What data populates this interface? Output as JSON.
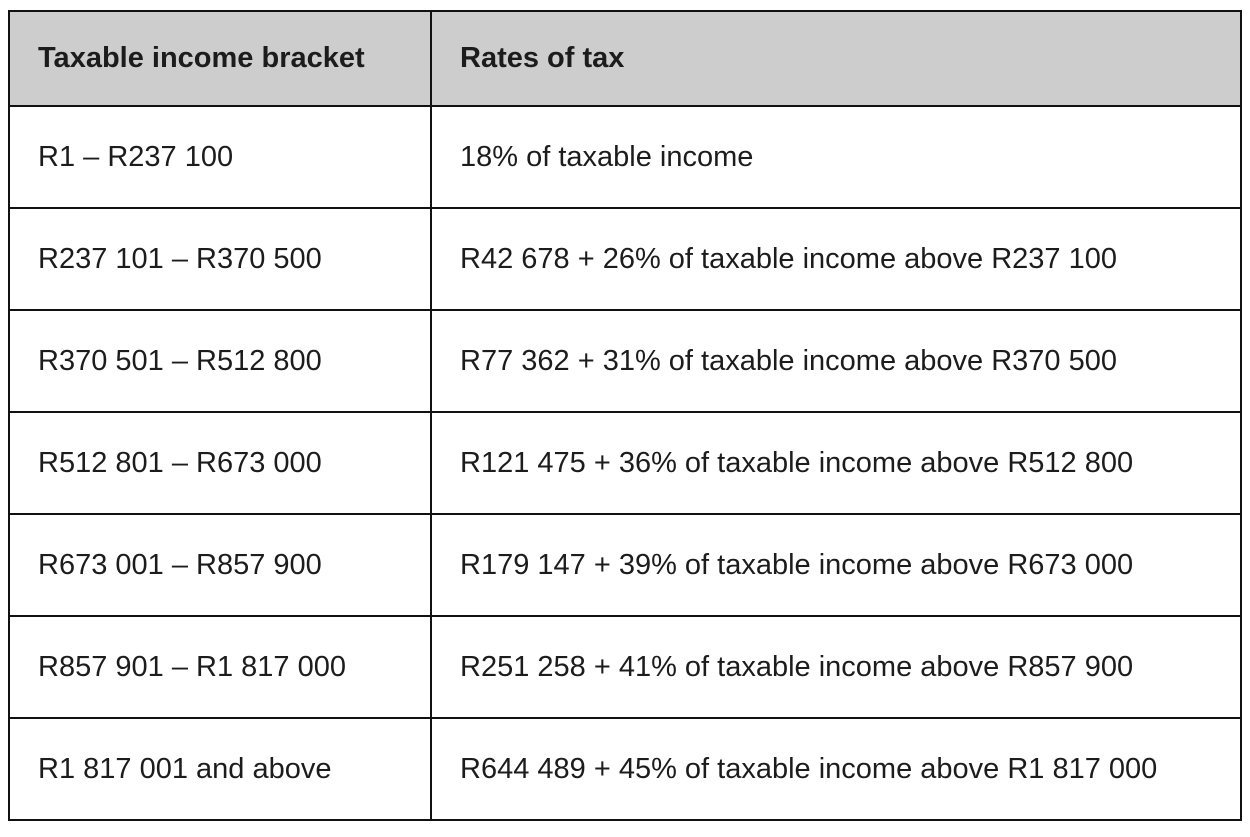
{
  "table": {
    "headers": {
      "bracket": "Taxable income bracket",
      "rate": "Rates of tax"
    },
    "rows": [
      {
        "bracket": "R1 – R237 100",
        "rate": "18% of taxable income"
      },
      {
        "bracket": "R237 101 – R370 500",
        "rate": "R42 678 + 26% of taxable income above R237 100"
      },
      {
        "bracket": "R370 501 – R512 800",
        "rate": "R77 362 + 31% of taxable income above R370 500"
      },
      {
        "bracket": "R512 801 – R673 000",
        "rate": "R121 475 + 36% of taxable income above R512 800"
      },
      {
        "bracket": "R673 001 – R857 900",
        "rate": "R179 147 + 39% of taxable income above R673 000"
      },
      {
        "bracket": "R857 901 – R1 817 000",
        "rate": "R251 258 + 41% of taxable income above R857 900"
      },
      {
        "bracket": "R1 817 001 and above",
        "rate": "R644 489 + 45% of taxable income above R1 817 000"
      }
    ],
    "colors": {
      "header_background": "#cdcdcd",
      "border": "#111111",
      "text": "#1c1c1c",
      "row_background": "#ffffff"
    }
  }
}
